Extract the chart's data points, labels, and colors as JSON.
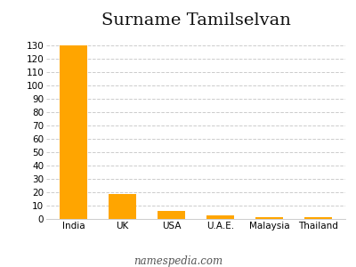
{
  "title": "Surname Tamilselvan",
  "categories": [
    "India",
    "UK",
    "USA",
    "U.A.E.",
    "Malaysia",
    "Thailand"
  ],
  "values": [
    130,
    19,
    6,
    3,
    1.5,
    1.5
  ],
  "bar_color": "#FFA500",
  "ylim": [
    0,
    140
  ],
  "yticks": [
    0,
    10,
    20,
    30,
    40,
    50,
    60,
    70,
    80,
    90,
    100,
    110,
    120,
    130
  ],
  "grid_color": "#cccccc",
  "background_color": "#ffffff",
  "title_fontsize": 14,
  "tick_fontsize": 7.5,
  "footer_text": "namespedia.com",
  "footer_fontsize": 8.5
}
